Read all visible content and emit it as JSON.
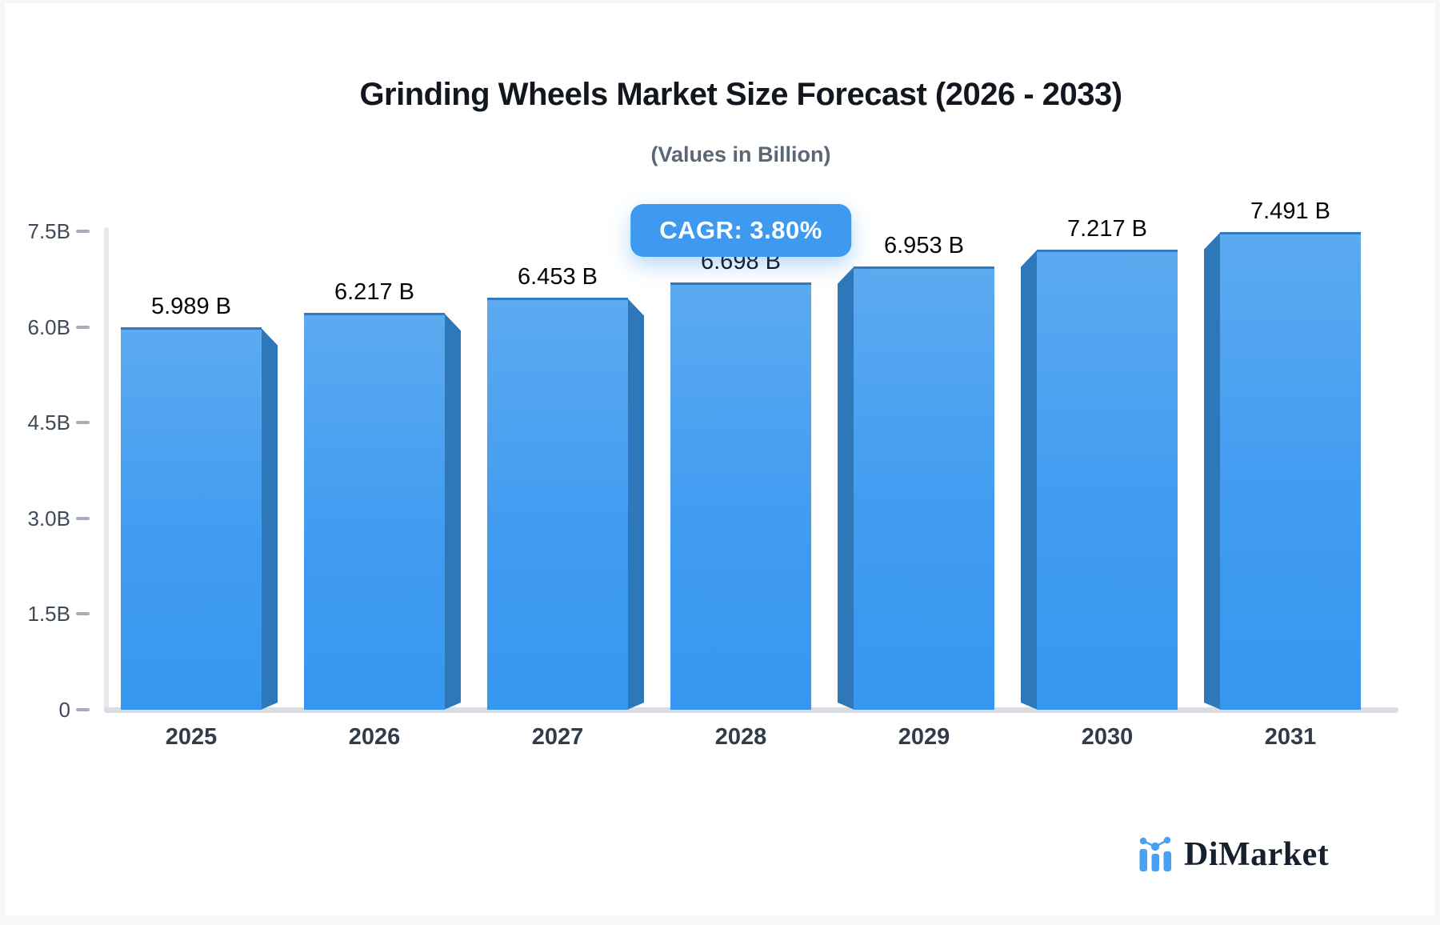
{
  "title": "Grinding Wheels Market Size Forecast (2026 - 2033)",
  "subtitle": "(Values in Billion)",
  "cagr_badge": "CAGR: 3.80%",
  "logo": {
    "text": "DiMarket",
    "icon": "bar-line-chart-icon"
  },
  "colors": {
    "bar_face_top": "#5caaf0",
    "bar_face_bottom": "#3697f0",
    "bar_top_edge": "#3079c4",
    "bar_side_face": "#2e77b8",
    "badge_background": "#3e9af0",
    "badge_text": "#ffffff",
    "axis_line": "#d9dce0",
    "tick_mark": "#a6adb6",
    "tick_text": "#3f4a59",
    "year_text": "#313c4b",
    "value_text": "#050505",
    "logo_blue": "#4aa0f2",
    "logo_text": "#16202e"
  },
  "chart_data": {
    "type": "bar",
    "style": "3d-columns-center-perspective",
    "title": "Grinding Wheels Market Size Forecast (2026 - 2033)",
    "subtitle": "(Values in Billion)",
    "annotation": "CAGR: 3.80%",
    "categories": [
      "2025",
      "2026",
      "2027",
      "2028",
      "2029",
      "2030",
      "2031"
    ],
    "values": [
      5.989,
      6.217,
      6.453,
      6.698,
      6.953,
      7.217,
      7.491
    ],
    "value_labels": [
      "5.989 B",
      "6.217 B",
      "6.453 B",
      "6.698 B",
      "6.953 B",
      "7.217 B",
      "7.491 B"
    ],
    "ytick_values": [
      0,
      1.5,
      3.0,
      4.5,
      6.0,
      7.5
    ],
    "ytick_labels": [
      "0",
      "1.5B",
      "3.0B",
      "4.5B",
      "6.0B",
      "7.5B"
    ],
    "ylim": [
      0,
      7.5
    ],
    "grid": false,
    "legend": "none"
  }
}
